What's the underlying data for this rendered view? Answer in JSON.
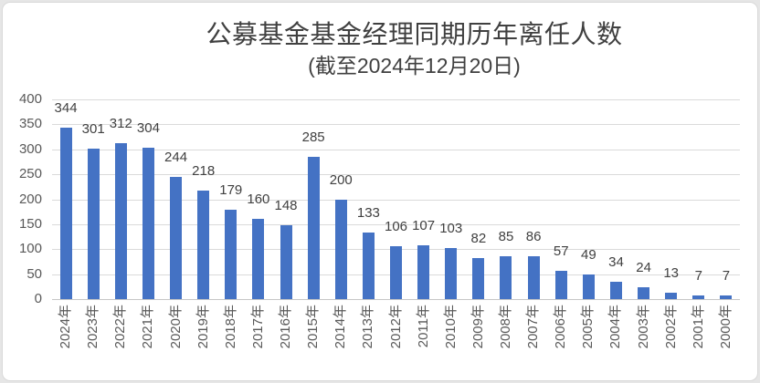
{
  "window": {
    "outer_background": "#e6e6e6",
    "card_background": "#ffffff",
    "card_border": "#d9d9d9"
  },
  "chart_data": {
    "type": "bar",
    "title": "公募基金基金经理同期历年离任人数",
    "subtitle": "(截至2024年12月20日)",
    "categories": [
      "2024年",
      "2023年",
      "2022年",
      "2021年",
      "2020年",
      "2019年",
      "2018年",
      "2017年",
      "2016年",
      "2015年",
      "2014年",
      "2013年",
      "2012年",
      "2011年",
      "2010年",
      "2009年",
      "2008年",
      "2007年",
      "2006年",
      "2005年",
      "2004年",
      "2003年",
      "2002年",
      "2001年",
      "2000年"
    ],
    "values": [
      344,
      301,
      312,
      304,
      244,
      218,
      179,
      160,
      148,
      285,
      200,
      133,
      106,
      107,
      103,
      82,
      85,
      86,
      57,
      49,
      34,
      24,
      13,
      7,
      7
    ],
    "xlabel": "",
    "ylabel": "",
    "ylim": [
      0,
      400
    ],
    "yticks": [
      400,
      350,
      300,
      250,
      200,
      150,
      100,
      50,
      0
    ],
    "grid": true,
    "legend": "none",
    "data_labels": true,
    "colors": {
      "bar": "#4472C4",
      "title": "#404040",
      "value_label": "#404040",
      "tick_label": "#595959",
      "gridline": "#DADADA",
      "axis_line": "#C6C6C6"
    }
  }
}
